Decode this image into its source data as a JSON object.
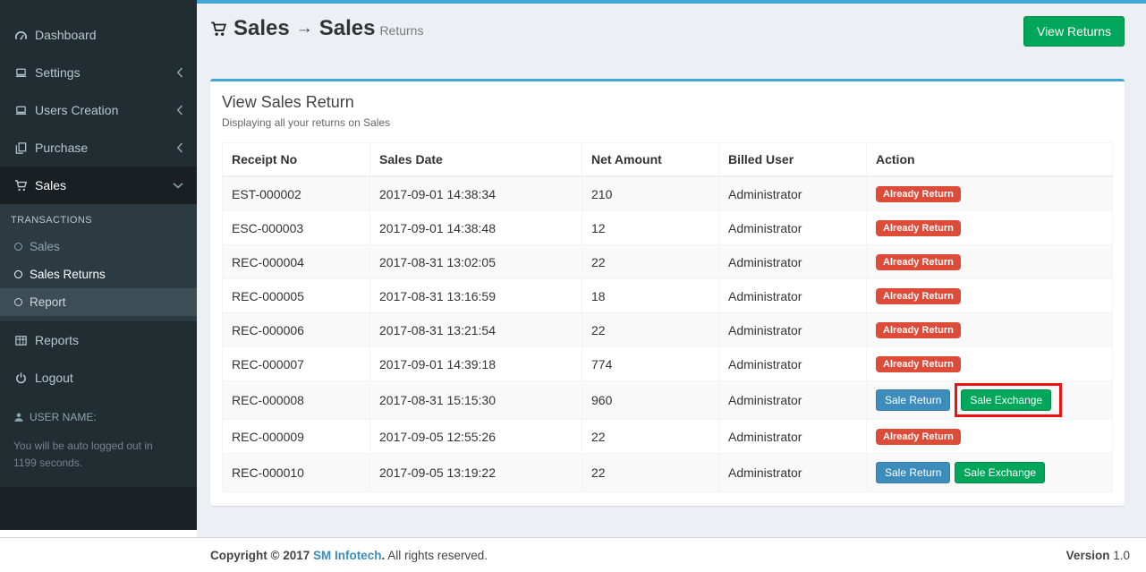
{
  "colors": {
    "accent_blue": "#3c8dbc",
    "accent_light_blue": "#42a5d8",
    "accent_green": "#00a65a",
    "badge_red": "#dd4b39",
    "annotation_red": "#ee1111",
    "sidebar_bg": "#222d32",
    "page_bg": "#ecf0f5"
  },
  "sidebar": {
    "items": [
      {
        "id": "dashboard",
        "label": "Dashboard",
        "icon": "dashboard-icon"
      },
      {
        "id": "settings",
        "label": "Settings",
        "icon": "laptop-icon",
        "chevron": "left"
      },
      {
        "id": "users-creation",
        "label": "Users Creation",
        "icon": "laptop-icon",
        "chevron": "left"
      },
      {
        "id": "purchase",
        "label": "Purchase",
        "icon": "copy-icon",
        "chevron": "left"
      },
      {
        "id": "sales",
        "label": "Sales",
        "icon": "cart-icon",
        "chevron": "down",
        "active": true,
        "submenu_header": "TRANSACTIONS",
        "submenu": [
          {
            "id": "sales",
            "label": "Sales"
          },
          {
            "id": "sales-returns",
            "label": "Sales Returns",
            "active": true
          },
          {
            "id": "report",
            "label": "Report",
            "hover": true
          }
        ]
      },
      {
        "id": "reports",
        "label": "Reports",
        "icon": "table-icon"
      },
      {
        "id": "logout",
        "label": "Logout",
        "icon": "power-icon"
      }
    ],
    "user_section": {
      "label": "USER NAME:",
      "message": "You will be auto logged out in 1199 seconds."
    }
  },
  "header": {
    "title_primary": "Sales",
    "arrow": "→",
    "title_secondary": "Sales",
    "title_sub": "Returns",
    "view_returns_label": "View Returns"
  },
  "panel": {
    "title": "View Sales Return",
    "subtitle": "Displaying all your returns on Sales",
    "table": {
      "columns": [
        "Receipt No",
        "Sales Date",
        "Net Amount",
        "Billed User",
        "Action"
      ],
      "rows": [
        {
          "receipt_no": "EST-000002",
          "sales_date": "2017-09-01 14:38:34",
          "net_amount": "210",
          "billed_user": "Administrator",
          "actions": [
            {
              "label": "Already Return",
              "style": "danger",
              "kind": "badge"
            }
          ]
        },
        {
          "receipt_no": "ESC-000003",
          "sales_date": "2017-09-01 14:38:48",
          "net_amount": "12",
          "billed_user": "Administrator",
          "actions": [
            {
              "label": "Already Return",
              "style": "danger",
              "kind": "badge"
            }
          ]
        },
        {
          "receipt_no": "REC-000004",
          "sales_date": "2017-08-31 13:02:05",
          "net_amount": "22",
          "billed_user": "Administrator",
          "actions": [
            {
              "label": "Already Return",
              "style": "danger",
              "kind": "badge"
            }
          ]
        },
        {
          "receipt_no": "REC-000005",
          "sales_date": "2017-08-31 13:16:59",
          "net_amount": "18",
          "billed_user": "Administrator",
          "actions": [
            {
              "label": "Already Return",
              "style": "danger",
              "kind": "badge"
            }
          ]
        },
        {
          "receipt_no": "REC-000006",
          "sales_date": "2017-08-31 13:21:54",
          "net_amount": "22",
          "billed_user": "Administrator",
          "actions": [
            {
              "label": "Already Return",
              "style": "danger",
              "kind": "badge"
            }
          ]
        },
        {
          "receipt_no": "REC-000007",
          "sales_date": "2017-09-01 14:39:18",
          "net_amount": "774",
          "billed_user": "Administrator",
          "actions": [
            {
              "label": "Already Return",
              "style": "danger",
              "kind": "badge"
            }
          ]
        },
        {
          "receipt_no": "REC-000008",
          "sales_date": "2017-08-31 15:15:30",
          "net_amount": "960",
          "billed_user": "Administrator",
          "actions": [
            {
              "label": "Sale Return",
              "style": "primary",
              "kind": "button"
            },
            {
              "label": "Sale Exchange",
              "style": "success",
              "kind": "button",
              "annotated": true
            }
          ]
        },
        {
          "receipt_no": "REC-000009",
          "sales_date": "2017-09-05 12:55:26",
          "net_amount": "22",
          "billed_user": "Administrator",
          "actions": [
            {
              "label": "Already Return",
              "style": "danger",
              "kind": "badge"
            }
          ]
        },
        {
          "receipt_no": "REC-000010",
          "sales_date": "2017-09-05 13:19:22",
          "net_amount": "22",
          "billed_user": "Administrator",
          "actions": [
            {
              "label": "Sale Return",
              "style": "primary",
              "kind": "button"
            },
            {
              "label": "Sale Exchange",
              "style": "success",
              "kind": "button"
            }
          ]
        }
      ]
    }
  },
  "footer": {
    "copyright_prefix": "Copyright © 2017 ",
    "company": "SM Infotech",
    "copyright_suffix": ".",
    "rights": "All rights reserved.",
    "version_label": "Version",
    "version_value": "1.0"
  }
}
